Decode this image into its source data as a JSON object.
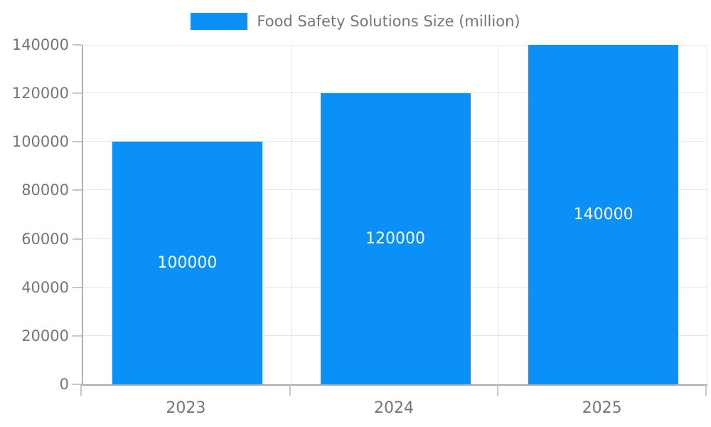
{
  "legend": {
    "label": "Food Safety Solutions Size (million)"
  },
  "chart_data": {
    "type": "bar",
    "title": "Food Safety Solutions Size (million)",
    "categories": [
      "2023",
      "2024",
      "2025"
    ],
    "values": [
      100000,
      120000,
      140000
    ],
    "bar_labels": [
      "100000",
      "120000",
      "140000"
    ],
    "ytick_step": 20000,
    "ytick_labels": [
      "0",
      "20000",
      "40000",
      "60000",
      "80000",
      "100000",
      "120000",
      "140000"
    ],
    "ylim": [
      0,
      140000
    ],
    "xlabel": "",
    "ylabel": "",
    "grid": true,
    "legend_position": "top-center"
  },
  "colors": {
    "bar": "#0a90f6",
    "bar_label_text": "#ffffff",
    "axis_label_text": "#757575",
    "legend_text": "#757575",
    "gridline": "#e6e6e6",
    "axis_line": "#ababab",
    "tick_mark": "#c6c6c6",
    "background": "#ffffff"
  }
}
